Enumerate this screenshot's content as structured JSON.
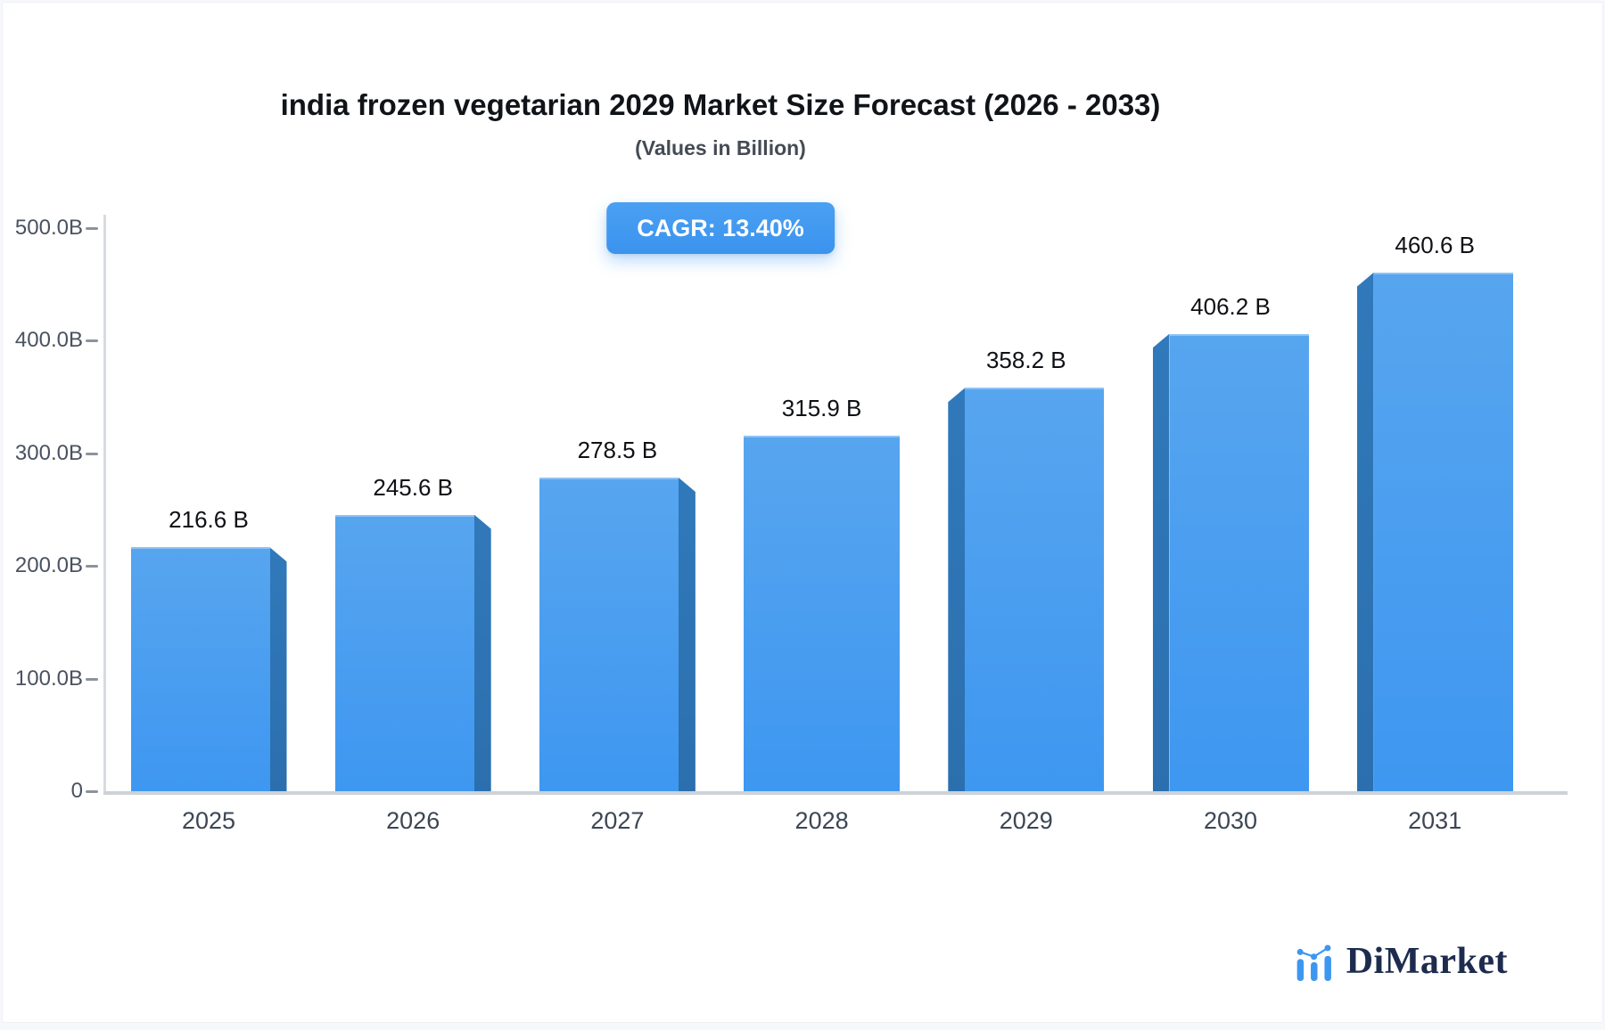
{
  "page": {
    "title": "india frozen vegetarian 2029 Market Size Forecast (2026 - 2033)",
    "subtitle": "(Values in Billion)",
    "cagr_label": "CAGR: 13.40%"
  },
  "brand": {
    "name": "DiMarket",
    "icon": "dimarket-bars-logo-icon"
  },
  "colors": {
    "bar_face_top": "#57a5ef",
    "bar_face_bottom": "#3e97f0",
    "bar_side_top": "#3079ba",
    "bar_side_bottom": "#2c6fae",
    "badge_bg": "#3e98f0",
    "badge_text": "#ffffff",
    "axis_line": "#cdd2d9",
    "tick_text": "#4a5260",
    "value_text": "#0f1115",
    "title_text": "#101419",
    "brand_blue": "#3e97ef",
    "brand_navy": "#1d2c4e"
  },
  "chart_data": {
    "type": "bar",
    "title": "india frozen vegetarian 2029 Market Size Forecast (2026 - 2033)",
    "subtitle": "(Values in Billion)",
    "cagr": "13.40%",
    "categories": [
      "2025",
      "2026",
      "2027",
      "2028",
      "2029",
      "2030",
      "2031"
    ],
    "values": [
      216.6,
      245.6,
      278.5,
      315.9,
      358.2,
      406.2,
      460.6
    ],
    "value_labels": [
      "216.6 B",
      "245.6 B",
      "278.5 B",
      "315.9 B",
      "358.2 B",
      "406.2 B",
      "460.6 B"
    ],
    "xlabel": "",
    "ylabel": "",
    "ylim": [
      0,
      500
    ],
    "yticks": [
      {
        "value": 500,
        "label": "500.0B"
      },
      {
        "value": 400,
        "label": "400.0B"
      },
      {
        "value": 300,
        "label": "300.0B"
      },
      {
        "value": 200,
        "label": "200.0B"
      },
      {
        "value": 100,
        "label": "100.0B"
      },
      {
        "value": 0,
        "label": "0"
      }
    ],
    "grid": false,
    "legend": "none",
    "bar_style": "3d-perspective"
  }
}
